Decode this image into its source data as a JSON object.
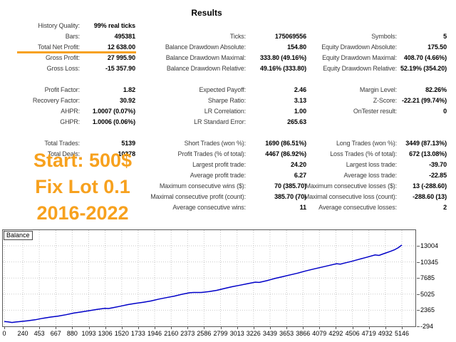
{
  "title": "Results",
  "accent_color": "#F7A11E",
  "promo": {
    "lines": [
      "Start: 500$",
      "Fix Lot 0.1",
      "2016-2022"
    ]
  },
  "stats": {
    "rows": [
      [
        "History Quality:",
        "99% real ticks",
        "",
        "",
        "",
        ""
      ],
      [
        "Bars:",
        "495381",
        "Ticks:",
        "175069556",
        "Symbols:",
        "5"
      ],
      [
        "Total Net Profit:",
        "12 638.00",
        "Balance Drawdown Absolute:",
        "154.80",
        "Equity Drawdown Absolute:",
        "175.50"
      ],
      [
        "Gross Profit:",
        "27 995.90",
        "Balance Drawdown Maximal:",
        "333.80 (49.16%)",
        "Equity Drawdown Maximal:",
        "408.70 (4.66%)"
      ],
      [
        "Gross Loss:",
        "-15 357.90",
        "Balance Drawdown Relative:",
        "49.16% (333.80)",
        "Equity Drawdown Relative:",
        "52.19% (354.20)"
      ],
      "spacer",
      [
        "Profit Factor:",
        "1.82",
        "Expected Payoff:",
        "2.46",
        "Margin Level:",
        "82.26%"
      ],
      [
        "Recovery Factor:",
        "30.92",
        "Sharpe Ratio:",
        "3.13",
        "Z-Score:",
        "-22.21 (99.74%)"
      ],
      [
        "AHPR:",
        "1.0007 (0.07%)",
        "LR Correlation:",
        "1.00",
        "OnTester result:",
        "0"
      ],
      [
        "GHPR:",
        "1.0006 (0.06%)",
        "LR Standard Error:",
        "265.63",
        "",
        ""
      ],
      "spacer",
      [
        "Total Trades:",
        "5139",
        "Short Trades (won %):",
        "1690 (86.51%)",
        "Long Trades (won %):",
        "3449 (87.13%)"
      ],
      [
        "Total Deals:",
        "10278",
        "Profit Trades (% of total):",
        "4467 (86.92%)",
        "Loss Trades (% of total):",
        "672 (13.08%)"
      ],
      [
        "",
        "",
        "Largest profit trade:",
        "24.20",
        "Largest loss trade:",
        "-39.70"
      ],
      [
        "",
        "",
        "Average profit trade:",
        "6.27",
        "Average loss trade:",
        "-22.85"
      ],
      [
        "",
        "",
        "Maximum consecutive wins ($):",
        "70 (385.70)",
        "Maximum consecutive losses ($):",
        "13 (-288.60)"
      ],
      [
        "",
        "",
        "Maximal consecutive profit (count):",
        "385.70 (70)",
        "Maximal consecutive loss (count):",
        "-288.60 (13)"
      ],
      [
        "",
        "",
        "Average consecutive wins:",
        "11",
        "Average consecutive losses:",
        "2"
      ]
    ]
  },
  "chart_data": {
    "type": "line",
    "title": "Balance",
    "legend_position": "top-left",
    "grid": true,
    "line_color": "#0000C8",
    "grid_color": "#c9c9c9",
    "xlabel": "",
    "ylabel": "",
    "xlim": [
      0,
      5146
    ],
    "ylim": [
      -294,
      13004
    ],
    "x_ticks": [
      0,
      240,
      453,
      667,
      880,
      1093,
      1306,
      1520,
      1733,
      1946,
      2160,
      2373,
      2586,
      2799,
      3013,
      3226,
      3439,
      3653,
      3866,
      4079,
      4292,
      4506,
      4719,
      4932,
      5146
    ],
    "y_ticks": [
      13004,
      10345,
      7685,
      5025,
      2365,
      -294
    ],
    "series": [
      {
        "name": "Balance",
        "points": [
          [
            0,
            500
          ],
          [
            50,
            440
          ],
          [
            100,
            345
          ],
          [
            150,
            420
          ],
          [
            200,
            480
          ],
          [
            300,
            620
          ],
          [
            400,
            790
          ],
          [
            500,
            1030
          ],
          [
            600,
            1230
          ],
          [
            700,
            1400
          ],
          [
            800,
            1620
          ],
          [
            900,
            1900
          ],
          [
            1000,
            2080
          ],
          [
            1100,
            2300
          ],
          [
            1200,
            2500
          ],
          [
            1300,
            2680
          ],
          [
            1350,
            2650
          ],
          [
            1400,
            2760
          ],
          [
            1500,
            3020
          ],
          [
            1600,
            3300
          ],
          [
            1700,
            3500
          ],
          [
            1800,
            3680
          ],
          [
            1900,
            3900
          ],
          [
            2000,
            4200
          ],
          [
            2100,
            4450
          ],
          [
            2200,
            4700
          ],
          [
            2300,
            5000
          ],
          [
            2400,
            5250
          ],
          [
            2450,
            5300
          ],
          [
            2550,
            5300
          ],
          [
            2650,
            5450
          ],
          [
            2750,
            5650
          ],
          [
            2850,
            5950
          ],
          [
            2950,
            6250
          ],
          [
            3050,
            6500
          ],
          [
            3150,
            6750
          ],
          [
            3250,
            7000
          ],
          [
            3300,
            6950
          ],
          [
            3400,
            7250
          ],
          [
            3500,
            7600
          ],
          [
            3600,
            7900
          ],
          [
            3700,
            8200
          ],
          [
            3800,
            8500
          ],
          [
            3900,
            8850
          ],
          [
            4000,
            9150
          ],
          [
            4100,
            9450
          ],
          [
            4200,
            9750
          ],
          [
            4300,
            10050
          ],
          [
            4350,
            9980
          ],
          [
            4400,
            10150
          ],
          [
            4500,
            10450
          ],
          [
            4600,
            10800
          ],
          [
            4700,
            11150
          ],
          [
            4800,
            11500
          ],
          [
            4850,
            11420
          ],
          [
            4900,
            11650
          ],
          [
            5000,
            12100
          ],
          [
            5050,
            12350
          ],
          [
            5100,
            12700
          ],
          [
            5146,
            13138
          ]
        ]
      }
    ]
  }
}
